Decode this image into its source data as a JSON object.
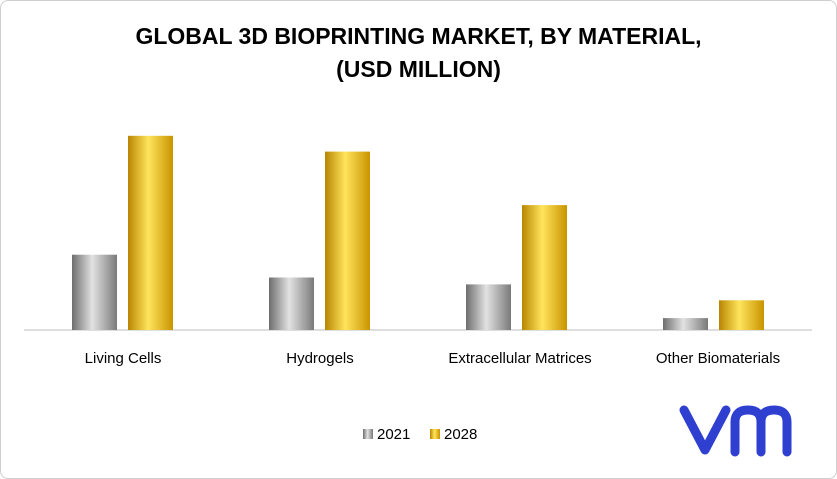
{
  "chart_data": {
    "type": "bar",
    "title_lines": [
      "GLOBAL 3D BIOPRINTING MARKET, BY MATERIAL,",
      "(USD MILLION)"
    ],
    "categories": [
      "Living Cells",
      "Hydrogels",
      "Extracellular Matrices",
      "Other Biomaterials"
    ],
    "series": [
      {
        "name": "2021",
        "values": [
          7.6,
          5.3,
          4.6,
          1.2
        ]
      },
      {
        "name": "2028",
        "values": [
          19.6,
          18.0,
          12.6,
          3.0
        ]
      }
    ],
    "ylim": [
      0,
      22
    ],
    "grid": false,
    "legend": "bottom-center",
    "colors": {
      "2021": [
        "#d8d8d8",
        "#7a7a7a"
      ],
      "2028": [
        "#ffe066",
        "#c49000"
      ]
    }
  },
  "logo": {
    "text": "vm",
    "color": "#2f3fd0"
  }
}
